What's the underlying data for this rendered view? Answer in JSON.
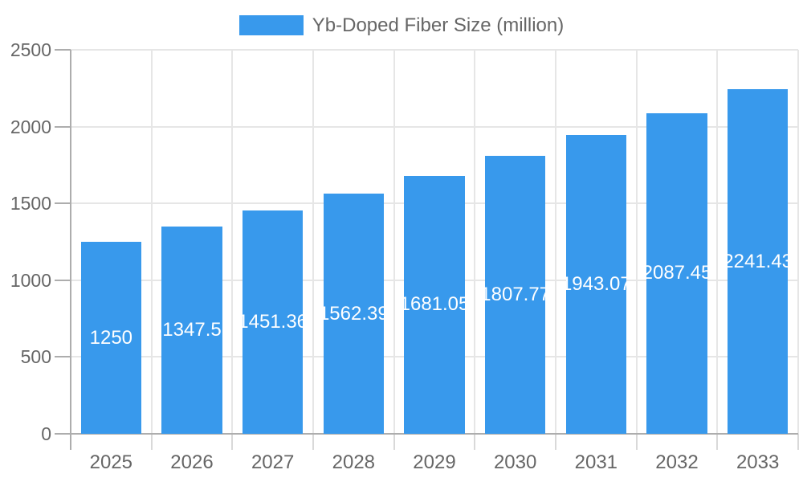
{
  "legend": {
    "label": "Yb-Doped Fiber Size (million)"
  },
  "chart_data": {
    "type": "bar",
    "title": "Yb-Doped Fiber Size (million)",
    "legend_entries": [
      "Yb-Doped Fiber Size (million)"
    ],
    "legend_position": "top",
    "categories": [
      "2025",
      "2026",
      "2027",
      "2028",
      "2029",
      "2030",
      "2031",
      "2032",
      "2033"
    ],
    "values": [
      1250,
      1347.5,
      1451.36,
      1562.39,
      1681.05,
      1807.77,
      1943.07,
      2087.45,
      2241.43
    ],
    "xlabel": "",
    "ylabel": "",
    "ylim": [
      0,
      2500
    ],
    "yticks": [
      0,
      500,
      1000,
      1500,
      2000,
      2500
    ],
    "grid": true,
    "bar_label_position": "center",
    "colors": {
      "bar": "#3899EC",
      "bar_value_text": "#FFFFFF",
      "axis_text": "#666666",
      "gridline": "#E6E6E6",
      "axis_line": "#ADADAD",
      "bottom_tick": "#D9D9D9",
      "background": "#FFFFFF"
    }
  }
}
